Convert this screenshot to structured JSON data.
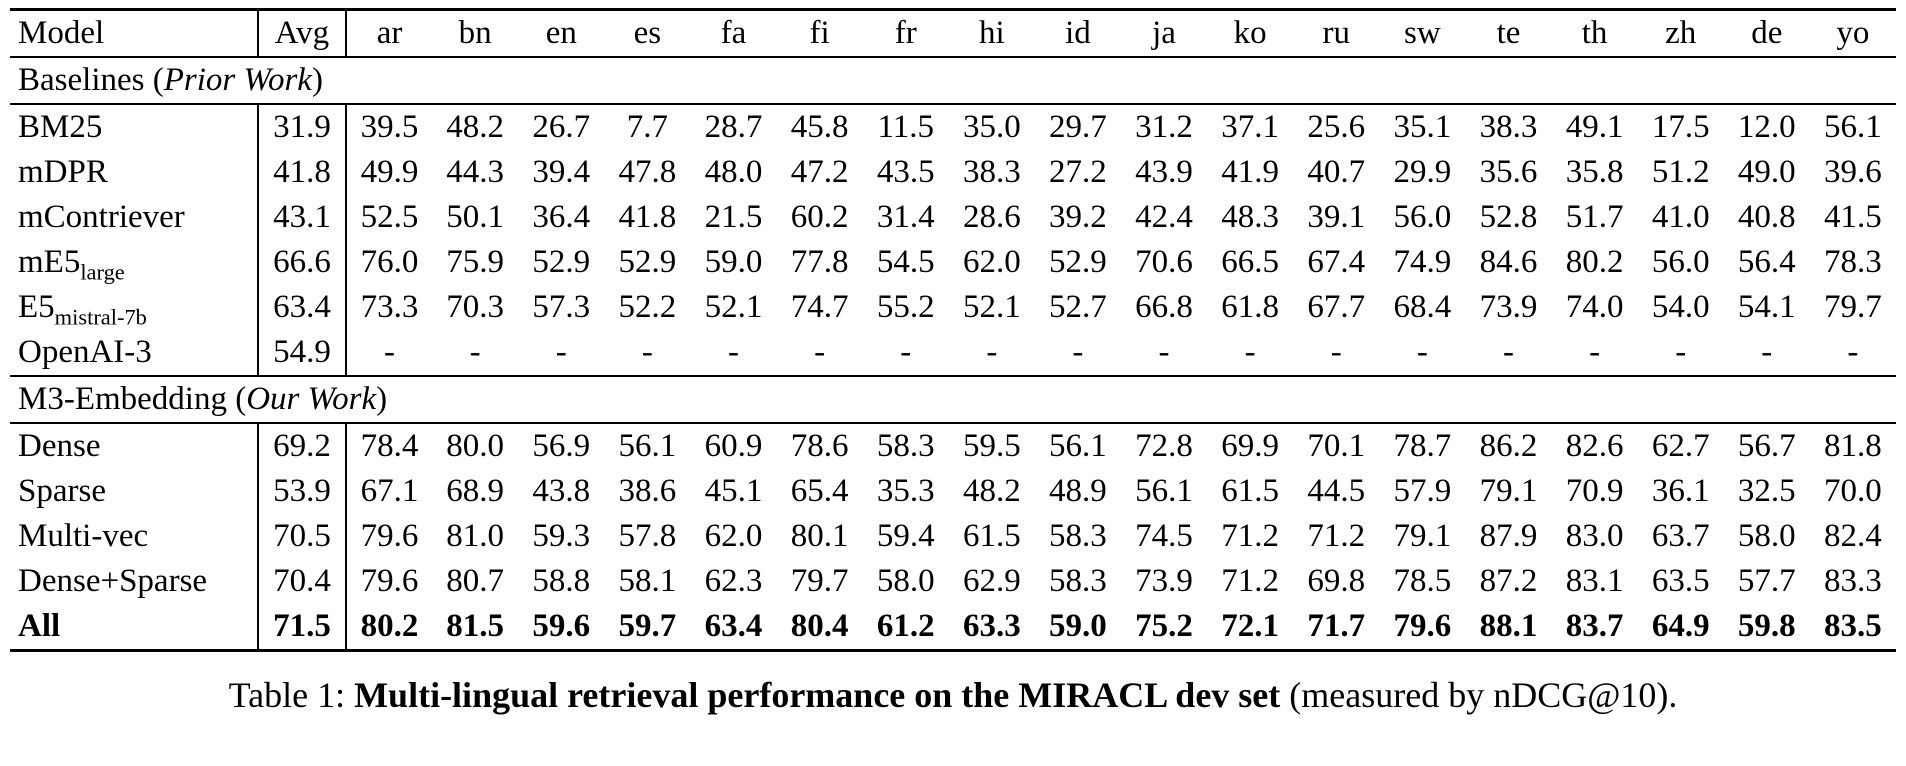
{
  "page": {
    "background": "#ffffff",
    "text_color": "#000000"
  },
  "table": {
    "header": {
      "model_label": "Model",
      "avg_label": "Avg",
      "languages": [
        "ar",
        "bn",
        "en",
        "es",
        "fa",
        "fi",
        "fr",
        "hi",
        "id",
        "ja",
        "ko",
        "ru",
        "sw",
        "te",
        "th",
        "zh",
        "de",
        "yo"
      ]
    },
    "sections": [
      {
        "title": {
          "prefix": "Baselines (",
          "italic": "Prior Work",
          "suffix": ")"
        },
        "rows": [
          {
            "model": "BM25",
            "sub": "",
            "bold": false,
            "avg": "31.9",
            "values": [
              "39.5",
              "48.2",
              "26.7",
              "7.7",
              "28.7",
              "45.8",
              "11.5",
              "35.0",
              "29.7",
              "31.2",
              "37.1",
              "25.6",
              "35.1",
              "38.3",
              "49.1",
              "17.5",
              "12.0",
              "56.1"
            ]
          },
          {
            "model": "mDPR",
            "sub": "",
            "bold": false,
            "avg": "41.8",
            "values": [
              "49.9",
              "44.3",
              "39.4",
              "47.8",
              "48.0",
              "47.2",
              "43.5",
              "38.3",
              "27.2",
              "43.9",
              "41.9",
              "40.7",
              "29.9",
              "35.6",
              "35.8",
              "51.2",
              "49.0",
              "39.6"
            ]
          },
          {
            "model": "mContriever",
            "sub": "",
            "bold": false,
            "avg": "43.1",
            "values": [
              "52.5",
              "50.1",
              "36.4",
              "41.8",
              "21.5",
              "60.2",
              "31.4",
              "28.6",
              "39.2",
              "42.4",
              "48.3",
              "39.1",
              "56.0",
              "52.8",
              "51.7",
              "41.0",
              "40.8",
              "41.5"
            ]
          },
          {
            "model": "mE5",
            "sub": "large",
            "bold": false,
            "avg": "66.6",
            "values": [
              "76.0",
              "75.9",
              "52.9",
              "52.9",
              "59.0",
              "77.8",
              "54.5",
              "62.0",
              "52.9",
              "70.6",
              "66.5",
              "67.4",
              "74.9",
              "84.6",
              "80.2",
              "56.0",
              "56.4",
              "78.3"
            ]
          },
          {
            "model": "E5",
            "sub": "mistral-7b",
            "bold": false,
            "avg": "63.4",
            "values": [
              "73.3",
              "70.3",
              "57.3",
              "52.2",
              "52.1",
              "74.7",
              "55.2",
              "52.1",
              "52.7",
              "66.8",
              "61.8",
              "67.7",
              "68.4",
              "73.9",
              "74.0",
              "54.0",
              "54.1",
              "79.7"
            ]
          },
          {
            "model": "OpenAI-3",
            "sub": "",
            "bold": false,
            "avg": "54.9",
            "values": [
              "-",
              "-",
              "-",
              "-",
              "-",
              "-",
              "-",
              "-",
              "-",
              "-",
              "-",
              "-",
              "-",
              "-",
              "-",
              "-",
              "-",
              "-"
            ]
          }
        ]
      },
      {
        "title": {
          "prefix": "M3-Embedding (",
          "italic": "Our Work",
          "suffix": ")"
        },
        "rows": [
          {
            "model": "Dense",
            "sub": "",
            "bold": false,
            "avg": "69.2",
            "values": [
              "78.4",
              "80.0",
              "56.9",
              "56.1",
              "60.9",
              "78.6",
              "58.3",
              "59.5",
              "56.1",
              "72.8",
              "69.9",
              "70.1",
              "78.7",
              "86.2",
              "82.6",
              "62.7",
              "56.7",
              "81.8"
            ]
          },
          {
            "model": "Sparse",
            "sub": "",
            "bold": false,
            "avg": "53.9",
            "values": [
              "67.1",
              "68.9",
              "43.8",
              "38.6",
              "45.1",
              "65.4",
              "35.3",
              "48.2",
              "48.9",
              "56.1",
              "61.5",
              "44.5",
              "57.9",
              "79.1",
              "70.9",
              "36.1",
              "32.5",
              "70.0"
            ]
          },
          {
            "model": "Multi-vec",
            "sub": "",
            "bold": false,
            "avg": "70.5",
            "values": [
              "79.6",
              "81.0",
              "59.3",
              "57.8",
              "62.0",
              "80.1",
              "59.4",
              "61.5",
              "58.3",
              "74.5",
              "71.2",
              "71.2",
              "79.1",
              "87.9",
              "83.0",
              "63.7",
              "58.0",
              "82.4"
            ]
          },
          {
            "model": "Dense+Sparse",
            "sub": "",
            "bold": false,
            "avg": "70.4",
            "values": [
              "79.6",
              "80.7",
              "58.8",
              "58.1",
              "62.3",
              "79.7",
              "58.0",
              "62.9",
              "58.3",
              "73.9",
              "71.2",
              "69.8",
              "78.5",
              "87.2",
              "83.1",
              "63.5",
              "57.7",
              "83.3"
            ]
          },
          {
            "model": "All",
            "sub": "",
            "bold": true,
            "avg": "71.5",
            "values": [
              "80.2",
              "81.5",
              "59.6",
              "59.7",
              "63.4",
              "80.4",
              "61.2",
              "63.3",
              "59.0",
              "75.2",
              "72.1",
              "71.7",
              "79.6",
              "88.1",
              "83.7",
              "64.9",
              "59.8",
              "83.5"
            ]
          }
        ]
      }
    ]
  },
  "caption": {
    "prefix": "Table 1: ",
    "bold": "Multi-lingual retrieval performance on the MIRACL dev set",
    "suffix": " (measured by nDCG@10)."
  }
}
